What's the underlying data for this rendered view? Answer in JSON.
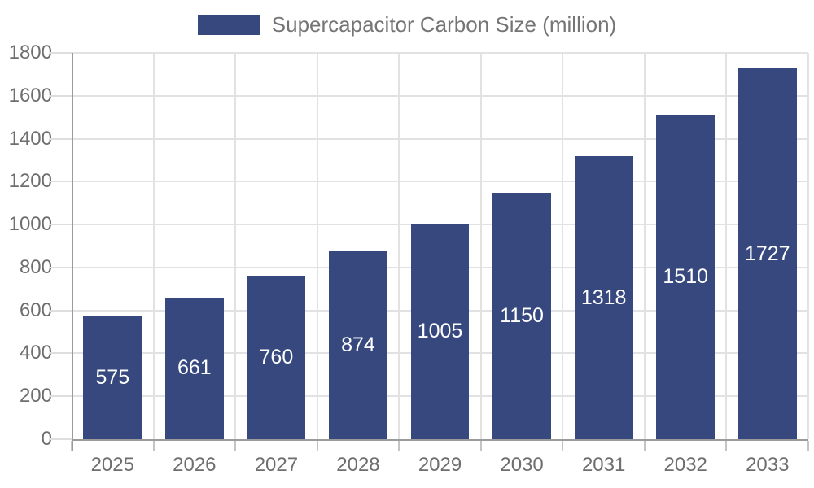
{
  "chart_data": {
    "type": "bar",
    "title": "",
    "legend": "Supercapacitor Carbon Size (million)",
    "legend_position": "top",
    "categories": [
      "2025",
      "2026",
      "2027",
      "2028",
      "2029",
      "2030",
      "2031",
      "2032",
      "2033"
    ],
    "series": [
      {
        "name": "Supercapacitor Carbon Size (million)",
        "values": [
          575,
          661,
          760,
          874,
          1005,
          1150,
          1318,
          1510,
          1727
        ]
      }
    ],
    "xlabel": "",
    "ylabel": "",
    "ylim": [
      0,
      1800
    ],
    "ytick_step": 200,
    "grid": true,
    "value_labels": "centered-inside-bars",
    "colors": {
      "bar": "#36487E",
      "value_label": "#ffffff",
      "axis_text": "#6e6e6e",
      "legend_text": "#757575",
      "gridline": "#e2e2e2",
      "axis_line": "#9b9b9b",
      "background": "#ffffff"
    }
  }
}
